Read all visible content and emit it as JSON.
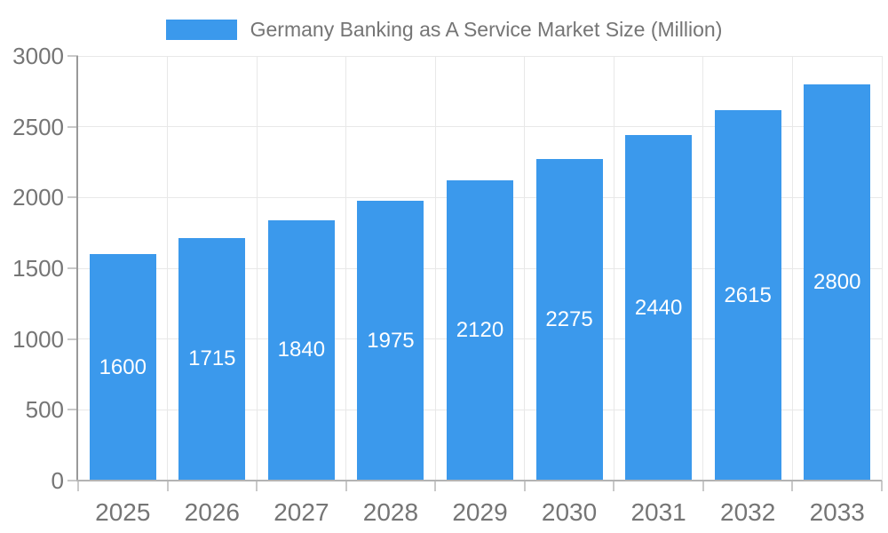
{
  "chart_data": {
    "type": "bar",
    "title": "Germany Banking as A Service Market Size (Million)",
    "legend_entries": [
      "Germany Banking as A Service Market Size (Million)"
    ],
    "legend_position": "top",
    "categories": [
      "2025",
      "2026",
      "2027",
      "2028",
      "2029",
      "2030",
      "2031",
      "2032",
      "2033"
    ],
    "values": [
      1600,
      1715,
      1840,
      1975,
      2120,
      2275,
      2440,
      2615,
      2800
    ],
    "xlabel": "",
    "ylabel": "",
    "ylim": [
      0,
      3000
    ],
    "y_tick_step": 500,
    "y_ticks": [
      0,
      500,
      1000,
      1500,
      2000,
      2500,
      3000
    ],
    "grid": true,
    "value_labels_position": "inside-center"
  },
  "colors": {
    "bar": "#3B99EC",
    "axis_label": "#757575",
    "legend_text": "#757575",
    "grid_line": "#e8e8e8",
    "x_axis_line": "#b3b3b3",
    "y_axis_line": "#999999",
    "tick": "#c9c9c9",
    "value_label": "#ffffff",
    "background": "#ffffff"
  }
}
